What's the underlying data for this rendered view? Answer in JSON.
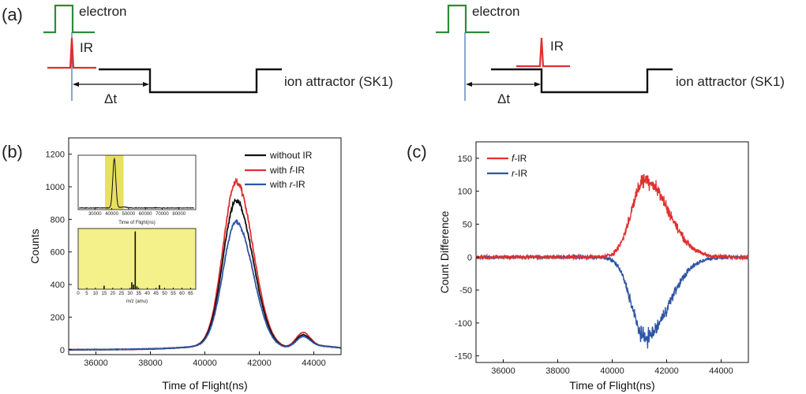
{
  "colors": {
    "black": "#111111",
    "red": "#e03030",
    "blue": "#2f55a4",
    "green": "#2e8b3a",
    "steel": "#3b6fb0",
    "highlight": "#f4f08a",
    "inset_highlight": "#e8e060"
  },
  "panel_a": {
    "label": "(a)",
    "left": {
      "electron": "electron",
      "ir": "IR",
      "delta": "Δt",
      "attractor": "ion attractor (SK1)"
    },
    "right": {
      "electron": "electron",
      "ir": "IR",
      "delta": "Δt",
      "attractor": "ion attractor (SK1)"
    }
  },
  "panel_b": {
    "label": "(b)"
  },
  "panel_c": {
    "label": "(c)"
  },
  "chart_data": [
    {
      "id": "b",
      "type": "line",
      "xlabel": "Time of Flight(ns)",
      "ylabel": "Counts",
      "xlim": [
        35000,
        45000
      ],
      "ylim": [
        -30,
        1300
      ],
      "xticks": [
        36000,
        38000,
        40000,
        42000,
        44000
      ],
      "yticks": [
        0,
        200,
        400,
        600,
        800,
        1000,
        1200
      ],
      "legend": "top-right",
      "peak_center": 41150,
      "series": [
        {
          "name": "without IR",
          "color": "#111111",
          "peak": 905,
          "shoulder": 75
        },
        {
          "name": "with f-IR",
          "name_pre": "with ",
          "name_it": "f",
          "name_post": "-IR",
          "color": "#e03030",
          "peak": 1020,
          "shoulder": 90
        },
        {
          "name": "with r-IR",
          "name_pre": "with ",
          "name_it": "r",
          "name_post": "-IR",
          "color": "#2f55a4",
          "peak": 775,
          "shoulder": 65
        }
      ],
      "insets": [
        {
          "type": "line",
          "xlabel": "Time of Flight(ns)",
          "xlim": [
            20000,
            90000
          ],
          "xticks": [
            30000,
            40000,
            50000,
            60000,
            70000,
            80000
          ],
          "highlight": [
            36000,
            47000
          ],
          "peak": [
            41500,
            1.0
          ]
        },
        {
          "type": "bar",
          "xlabel": "m/z (amu)",
          "xlim": [
            0,
            68
          ],
          "xticks": [
            0,
            5,
            10,
            15,
            20,
            25,
            30,
            35,
            40,
            45,
            50,
            55,
            60,
            65
          ],
          "bars": [
            [
              15,
              0.06
            ],
            [
              31,
              0.12
            ],
            [
              32,
              0.08
            ],
            [
              33,
              1.0
            ],
            [
              34,
              0.05
            ],
            [
              47,
              0.07
            ]
          ]
        }
      ]
    },
    {
      "id": "c",
      "type": "line",
      "xlabel": "Time of Flight(ns)",
      "ylabel": "Count Difference",
      "xlim": [
        35000,
        45000
      ],
      "ylim": [
        -160,
        175
      ],
      "xticks": [
        36000,
        38000,
        40000,
        42000,
        44000
      ],
      "yticks": [
        -150,
        -100,
        -50,
        0,
        50,
        100,
        150
      ],
      "legend": "top-left",
      "peak_center": 41200,
      "series": [
        {
          "name": "f-IR",
          "name_it": "f",
          "name_post": "-IR",
          "color": "#e03030",
          "amplitude": 118
        },
        {
          "name": "r-IR",
          "name_it": "r",
          "name_post": "-IR",
          "color": "#2f55a4",
          "amplitude": -122
        }
      ]
    }
  ]
}
